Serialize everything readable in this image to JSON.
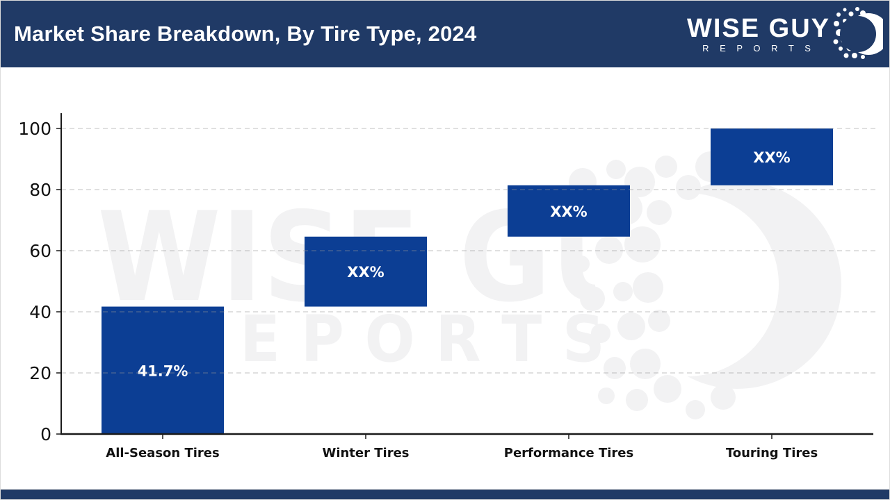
{
  "header": {
    "title": "Market Share Breakdown, By Tire Type, 2024",
    "bg_color": "#203a66",
    "logo": {
      "line1": "WISE GUY",
      "line2": "R E P O R T S"
    }
  },
  "watermark": {
    "line1": "WISE GUY",
    "line2": "R E P O R T S"
  },
  "footer": {
    "bg_color": "#203a66"
  },
  "chart_data": {
    "type": "bar",
    "subtype": "waterfall",
    "title": "Market Share Breakdown, By Tire Type, 2024",
    "categories": [
      "All-Season Tires",
      "Winter Tires",
      "Performance Tires",
      "Touring Tires"
    ],
    "segments": [
      {
        "category": "All-Season Tires",
        "start": 0,
        "end": 41.7,
        "label": "41.7%"
      },
      {
        "category": "Winter Tires",
        "start": 41.7,
        "end": 64.6,
        "label": "XX%"
      },
      {
        "category": "Performance Tires",
        "start": 64.6,
        "end": 81.4,
        "label": "XX%"
      },
      {
        "category": "Touring Tires",
        "start": 81.4,
        "end": 100,
        "label": "XX%"
      }
    ],
    "ylabel": "",
    "xlabel": "",
    "ylim": [
      0,
      100
    ],
    "yticks": [
      0,
      20,
      40,
      60,
      80,
      100
    ],
    "grid": "dashed horizontal gridlines, drawn over bars",
    "legend": "none",
    "bar_color": "#0c3e94",
    "bar_label_color": "#ffffff",
    "axis_color": "#1a1a1a",
    "gridline_color": "rgba(150,150,150,0.4)",
    "watermark_color": "#f2f2f3"
  }
}
